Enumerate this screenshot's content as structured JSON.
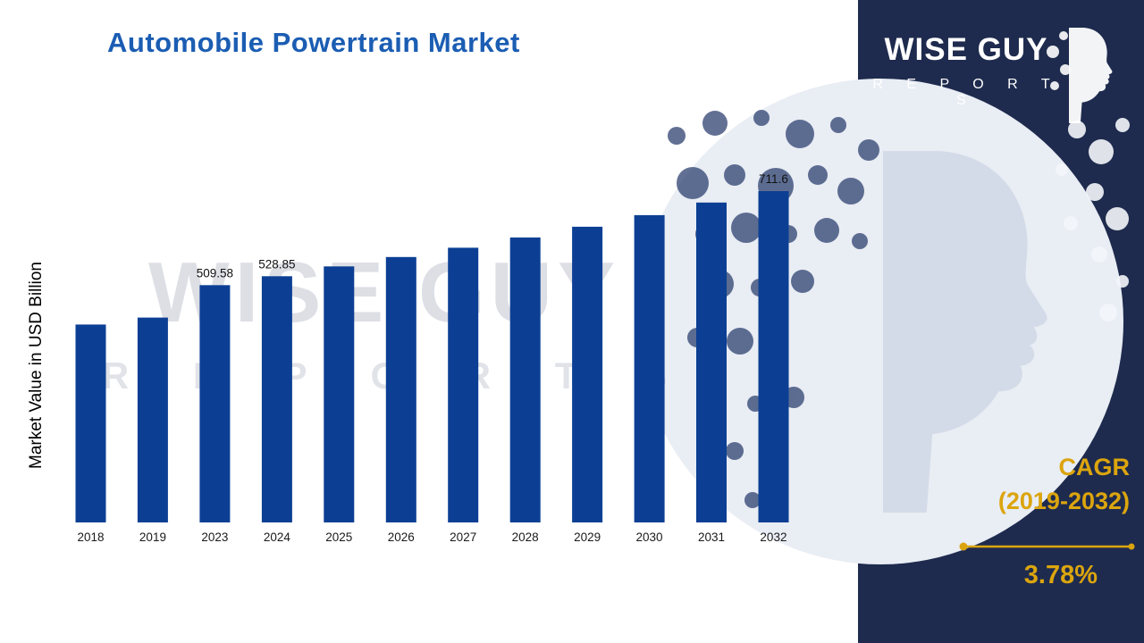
{
  "title": "Automobile Powertrain Market",
  "ylabel": "Market Value in USD Billion",
  "chart_data": {
    "type": "bar",
    "title": "Automobile Powertrain Market",
    "xlabel": "",
    "ylabel": "Market Value in USD Billion",
    "categories": [
      "2018",
      "2019",
      "2023",
      "2024",
      "2025",
      "2026",
      "2027",
      "2028",
      "2029",
      "2030",
      "2031",
      "2032"
    ],
    "values": [
      425,
      440,
      509.58,
      528.85,
      550,
      570,
      590,
      612,
      635,
      660,
      687,
      711.6
    ],
    "data_labels": [
      "",
      "",
      "509.58",
      "528.85",
      "",
      "",
      "",
      "",
      "",
      "",
      "",
      "711.6"
    ],
    "ylim": [
      0,
      780
    ],
    "bar_color": "#0c3f94",
    "grid": false,
    "legend": false
  },
  "watermark": {
    "line1": "WISE GUY",
    "line2": "R E P O R T S"
  },
  "logo": {
    "line1": "WISE GUY",
    "line2": "R E P O R T S"
  },
  "panel": {
    "cagr_label": "CAGR",
    "cagr_range": "(2019-2032)",
    "cagr_value": "3.78%",
    "bg_color": "#1e2b4e",
    "accent_color": "#dca50e"
  },
  "icons": {
    "logo_face": "face-profile-icon",
    "watermark_face": "face-profile-icon"
  }
}
